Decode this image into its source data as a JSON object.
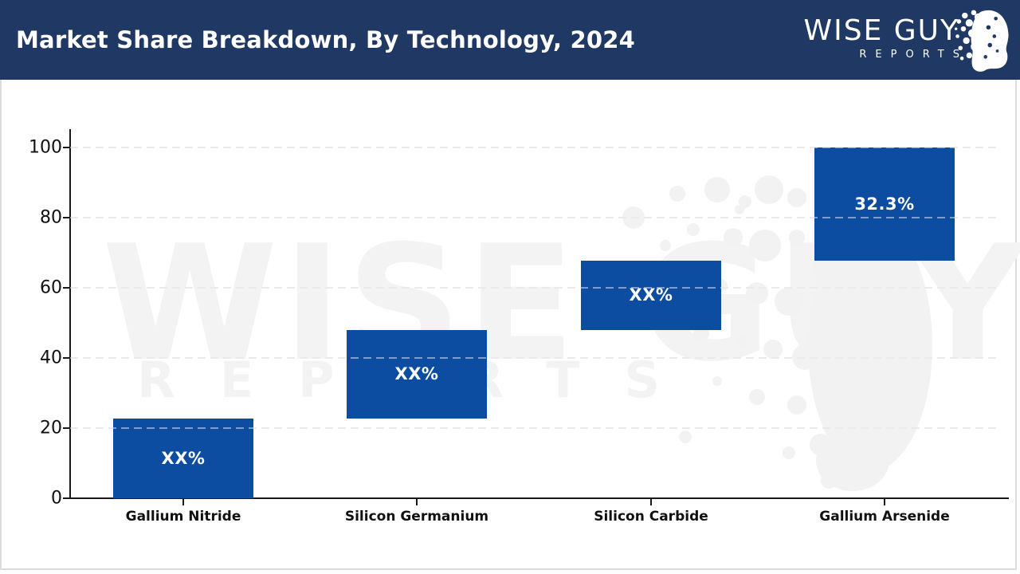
{
  "header": {
    "title": "Market Share Breakdown, By Technology, 2024",
    "bg_color": "#203864"
  },
  "logo": {
    "name": "WISE GUY",
    "sub": "REPORTS"
  },
  "watermark": {
    "name": "WISE GUY",
    "sub": "REPORTS"
  },
  "chart_data": {
    "type": "bar",
    "variant": "waterfall",
    "title": "Market Share Breakdown, By Technology, 2024",
    "categories": [
      "Gallium Nitride",
      "Silicon Germanium",
      "Silicon Carbide",
      "Gallium Arsenide"
    ],
    "series": [
      {
        "name": "Market share (%)",
        "segments": [
          {
            "category": "Gallium Nitride",
            "from": 0,
            "to": 22.7,
            "label": "XX%"
          },
          {
            "category": "Silicon Germanium",
            "from": 22.7,
            "to": 48.0,
            "label": "XX%"
          },
          {
            "category": "Silicon Carbide",
            "from": 48.0,
            "to": 67.7,
            "label": "XX%"
          },
          {
            "category": "Gallium Arsenide",
            "from": 67.7,
            "to": 100,
            "label": "32.3%"
          }
        ]
      }
    ],
    "xlabel": "",
    "ylabel": "",
    "ylim": [
      0,
      100
    ],
    "yticks": [
      0,
      20,
      40,
      60,
      80,
      100
    ],
    "grid": "horizontal-dashed",
    "legend": "none",
    "bar_color": "#0c4da2",
    "bar_label_color": "#ffffff",
    "grid_color": "#d9d9d9",
    "axis_color": "#1a1a1a"
  }
}
